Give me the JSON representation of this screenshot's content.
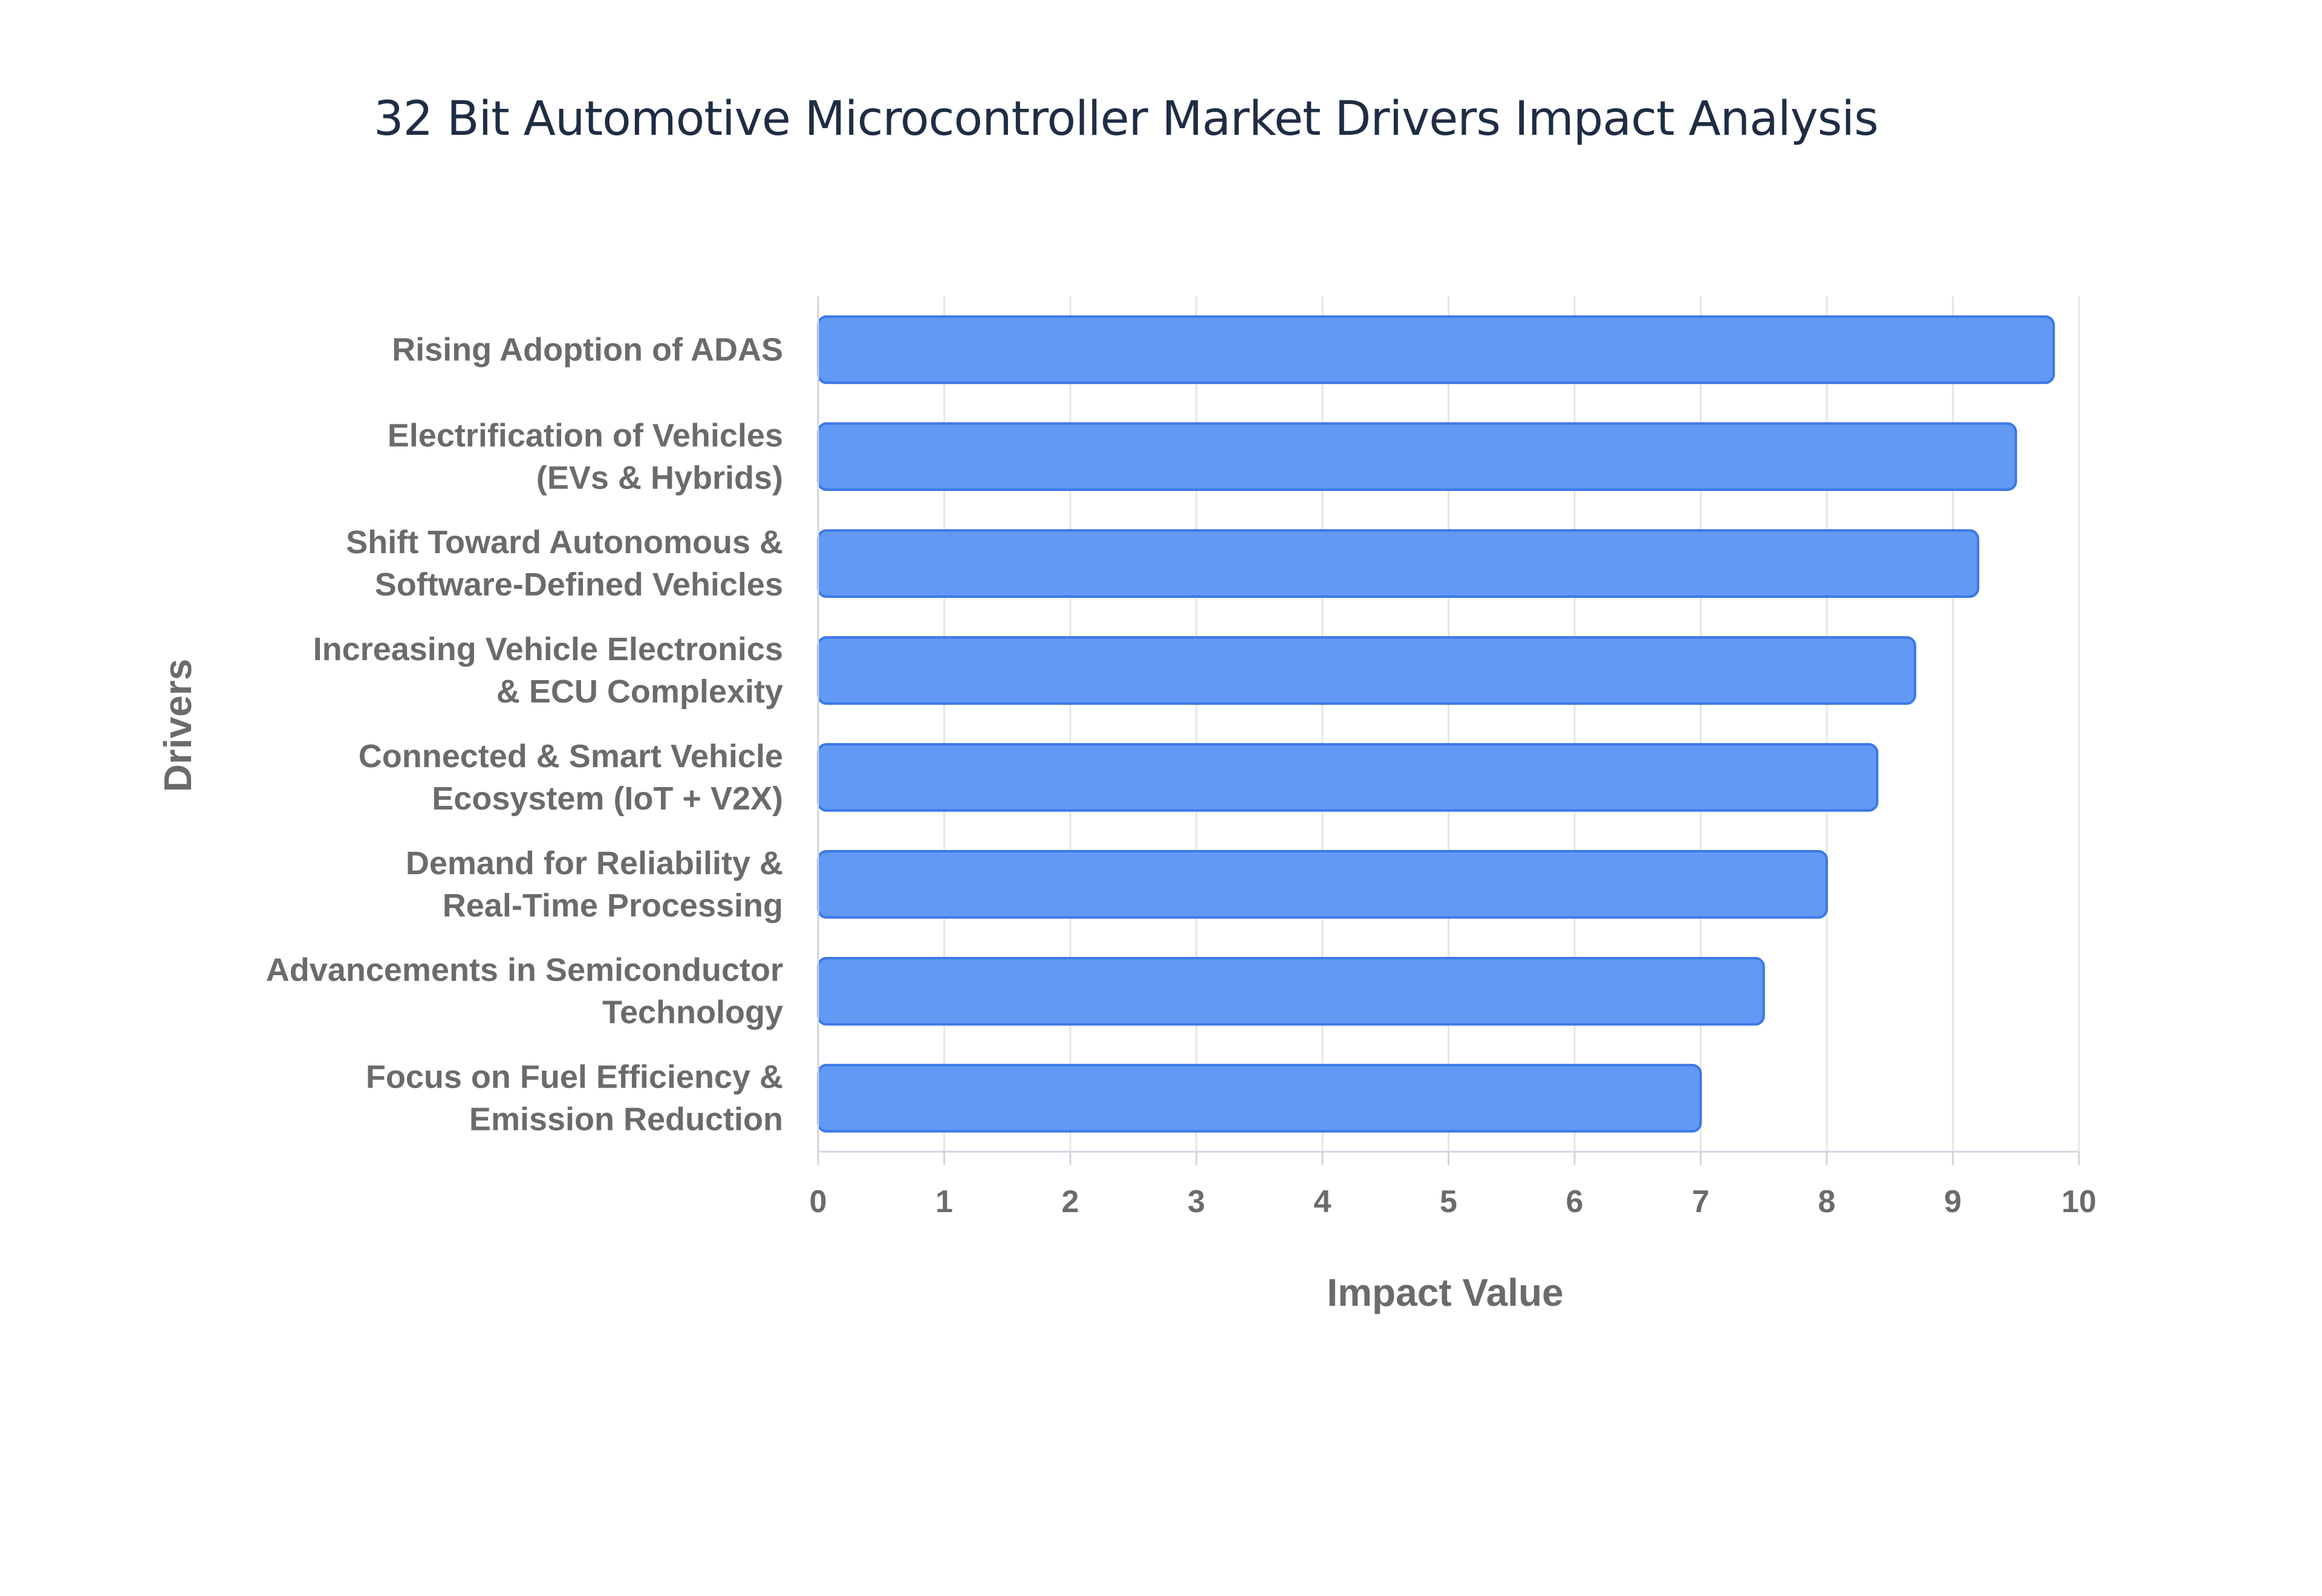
{
  "chart_data": {
    "type": "bar",
    "orientation": "horizontal",
    "title": "32 Bit Automotive Microcontroller Market Drivers Impact Analysis",
    "xlabel": "Impact Value",
    "ylabel": "Drivers",
    "xlim": [
      0,
      10
    ],
    "xticks": [
      "0",
      "1",
      "2",
      "3",
      "4",
      "5",
      "6",
      "7",
      "8",
      "9",
      "10"
    ],
    "grid": true,
    "bar_color": "#6199f5",
    "bar_edge_color": "#3c78e6",
    "categories": [
      [
        "Rising Adoption of ADAS"
      ],
      [
        "Electrification of Vehicles",
        "(EVs & Hybrids)"
      ],
      [
        "Shift Toward Autonomous &",
        "Software-Defined Vehicles"
      ],
      [
        "Increasing Vehicle Electronics",
        "& ECU Complexity"
      ],
      [
        "Connected & Smart Vehicle",
        "Ecosystem (IoT + V2X)"
      ],
      [
        "Demand for Reliability &",
        "Real-Time Processing"
      ],
      [
        "Advancements in Semiconductor",
        "Technology"
      ],
      [
        "Focus on Fuel Efficiency &",
        "Emission Reduction"
      ]
    ],
    "values": [
      9.8,
      9.5,
      9.2,
      8.7,
      8.4,
      8.0,
      7.5,
      7.0
    ]
  }
}
